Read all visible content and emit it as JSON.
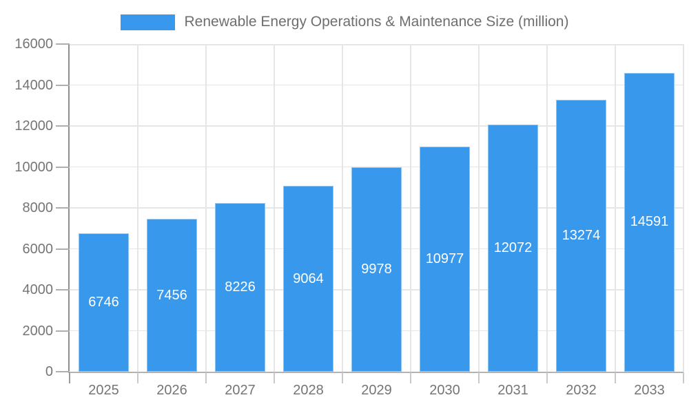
{
  "chart_data": {
    "type": "bar",
    "title": "Renewable Energy Operations & Maintenance Size (million)",
    "categories": [
      "2025",
      "2026",
      "2027",
      "2028",
      "2029",
      "2030",
      "2031",
      "2032",
      "2033"
    ],
    "values": [
      6746,
      7456,
      8226,
      9064,
      9978,
      10977,
      12072,
      13274,
      14591
    ],
    "xlabel": "",
    "ylabel": "",
    "ylim": [
      0,
      16000
    ],
    "yticks": [
      0,
      2000,
      4000,
      6000,
      8000,
      10000,
      12000,
      14000,
      16000
    ],
    "grid": true,
    "legend_position": "top",
    "bar_color": "#3899ec",
    "bar_label_color": "#ffffff",
    "axis_text_color": "#757575",
    "legend_text_color": "#6e6e6e",
    "gridline_color": "#e5e5e5"
  }
}
